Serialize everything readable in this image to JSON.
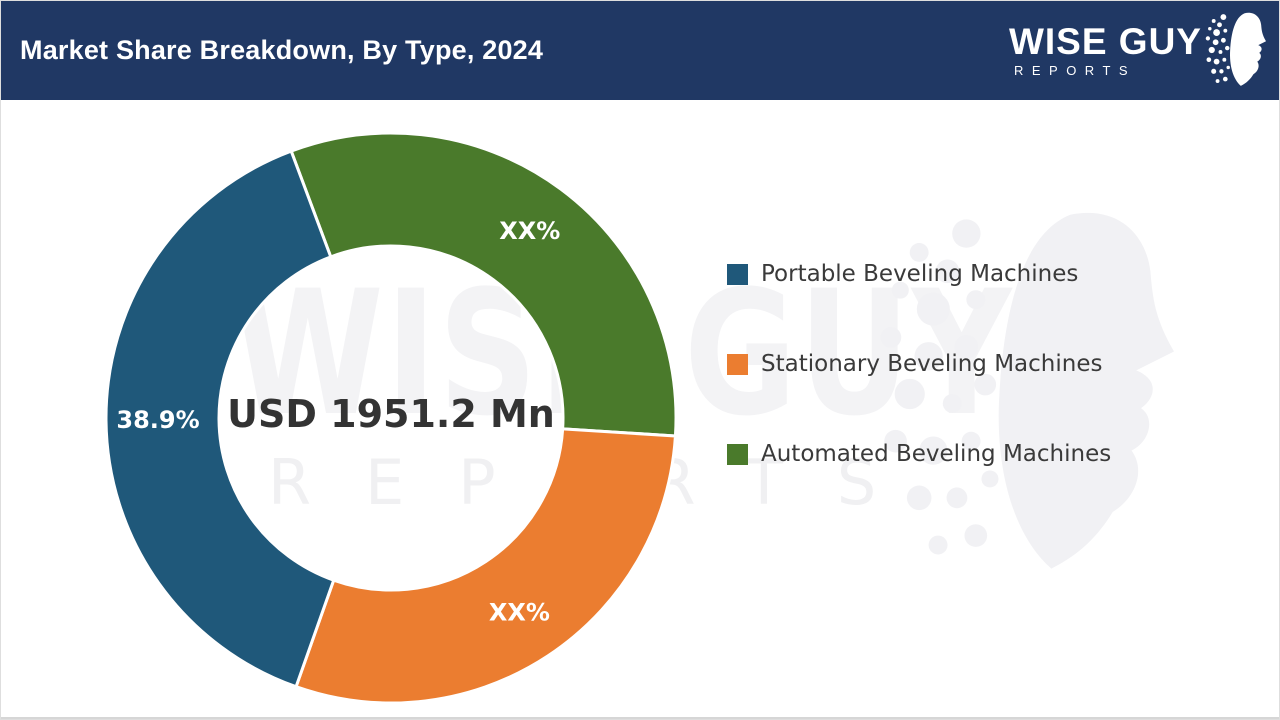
{
  "header": {
    "title": "Market Share Breakdown, By Type, 2024",
    "logo": {
      "line1": "WISE GUY",
      "line2": "REPORTS"
    }
  },
  "chart_data": {
    "type": "pie",
    "subtype": "donut",
    "title": "Market Share Breakdown, By Type, 2024",
    "center_label": "USD 1951.2 Mn",
    "start_angle_deg": -20.5,
    "inner_radius_ratio": 0.6,
    "legend_position": "right",
    "segments": [
      {
        "label": "Automated Beveling Machines",
        "display_value": "XX%",
        "share_pct": 31.7,
        "color": "#4A7A2B"
      },
      {
        "label": "Stationary Beveling Machines",
        "display_value": "XX%",
        "share_pct": 29.4,
        "color": "#EB7D30"
      },
      {
        "label": "Portable Beveling Machines",
        "display_value": "38.9%",
        "share_pct": 38.9,
        "color": "#1F587A"
      }
    ]
  },
  "legend": {
    "items": [
      {
        "label": "Portable Beveling Machines",
        "color": "#1F587A"
      },
      {
        "label": "Stationary Beveling Machines",
        "color": "#EB7D30"
      },
      {
        "label": "Automated Beveling Machines",
        "color": "#4A7A2B"
      }
    ]
  },
  "watermark": {
    "line1": "WISE GUY",
    "line2": "REPORTS"
  },
  "colors": {
    "header_bg": "#203864",
    "center_text": "#333333",
    "legend_text": "#3A3A3A",
    "segment_gap": "#FFFFFF",
    "watermark": "#F2F2F4"
  }
}
